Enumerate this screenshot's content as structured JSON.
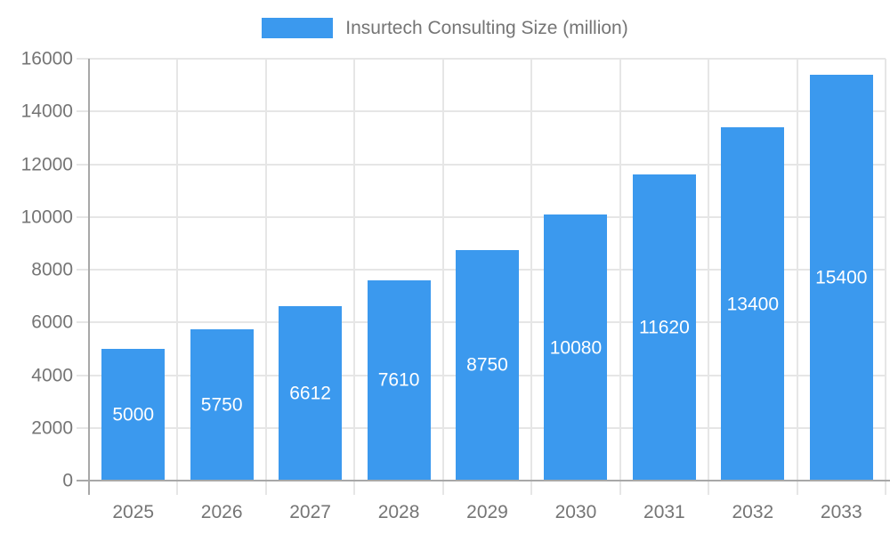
{
  "chart_data": {
    "type": "bar",
    "title": "",
    "categories": [
      "2025",
      "2026",
      "2027",
      "2028",
      "2029",
      "2030",
      "2031",
      "2032",
      "2033"
    ],
    "series": [
      {
        "name": "Insurtech Consulting Size (million)",
        "values": [
          5000,
          5750,
          6612,
          7610,
          8750,
          10080,
          11620,
          13400,
          15400
        ]
      }
    ],
    "xlabel": "",
    "ylabel": "",
    "ylim": [
      0,
      16000
    ],
    "y_ticks": [
      0,
      2000,
      4000,
      6000,
      8000,
      10000,
      12000,
      14000,
      16000
    ],
    "grid": true,
    "value_labels_visible": true,
    "value_label_position": "inside-center",
    "legend": {
      "position": "top",
      "entries": [
        "Insurtech Consulting Size (million)"
      ]
    },
    "colors": {
      "bar": "#3b99ee",
      "bar_value_text": "#ffffff",
      "axis_line": "#a8a8a8",
      "gridline": "#e6e6e6",
      "axis_text": "#757575",
      "legend_text": "#757575",
      "background": "#ffffff"
    }
  }
}
